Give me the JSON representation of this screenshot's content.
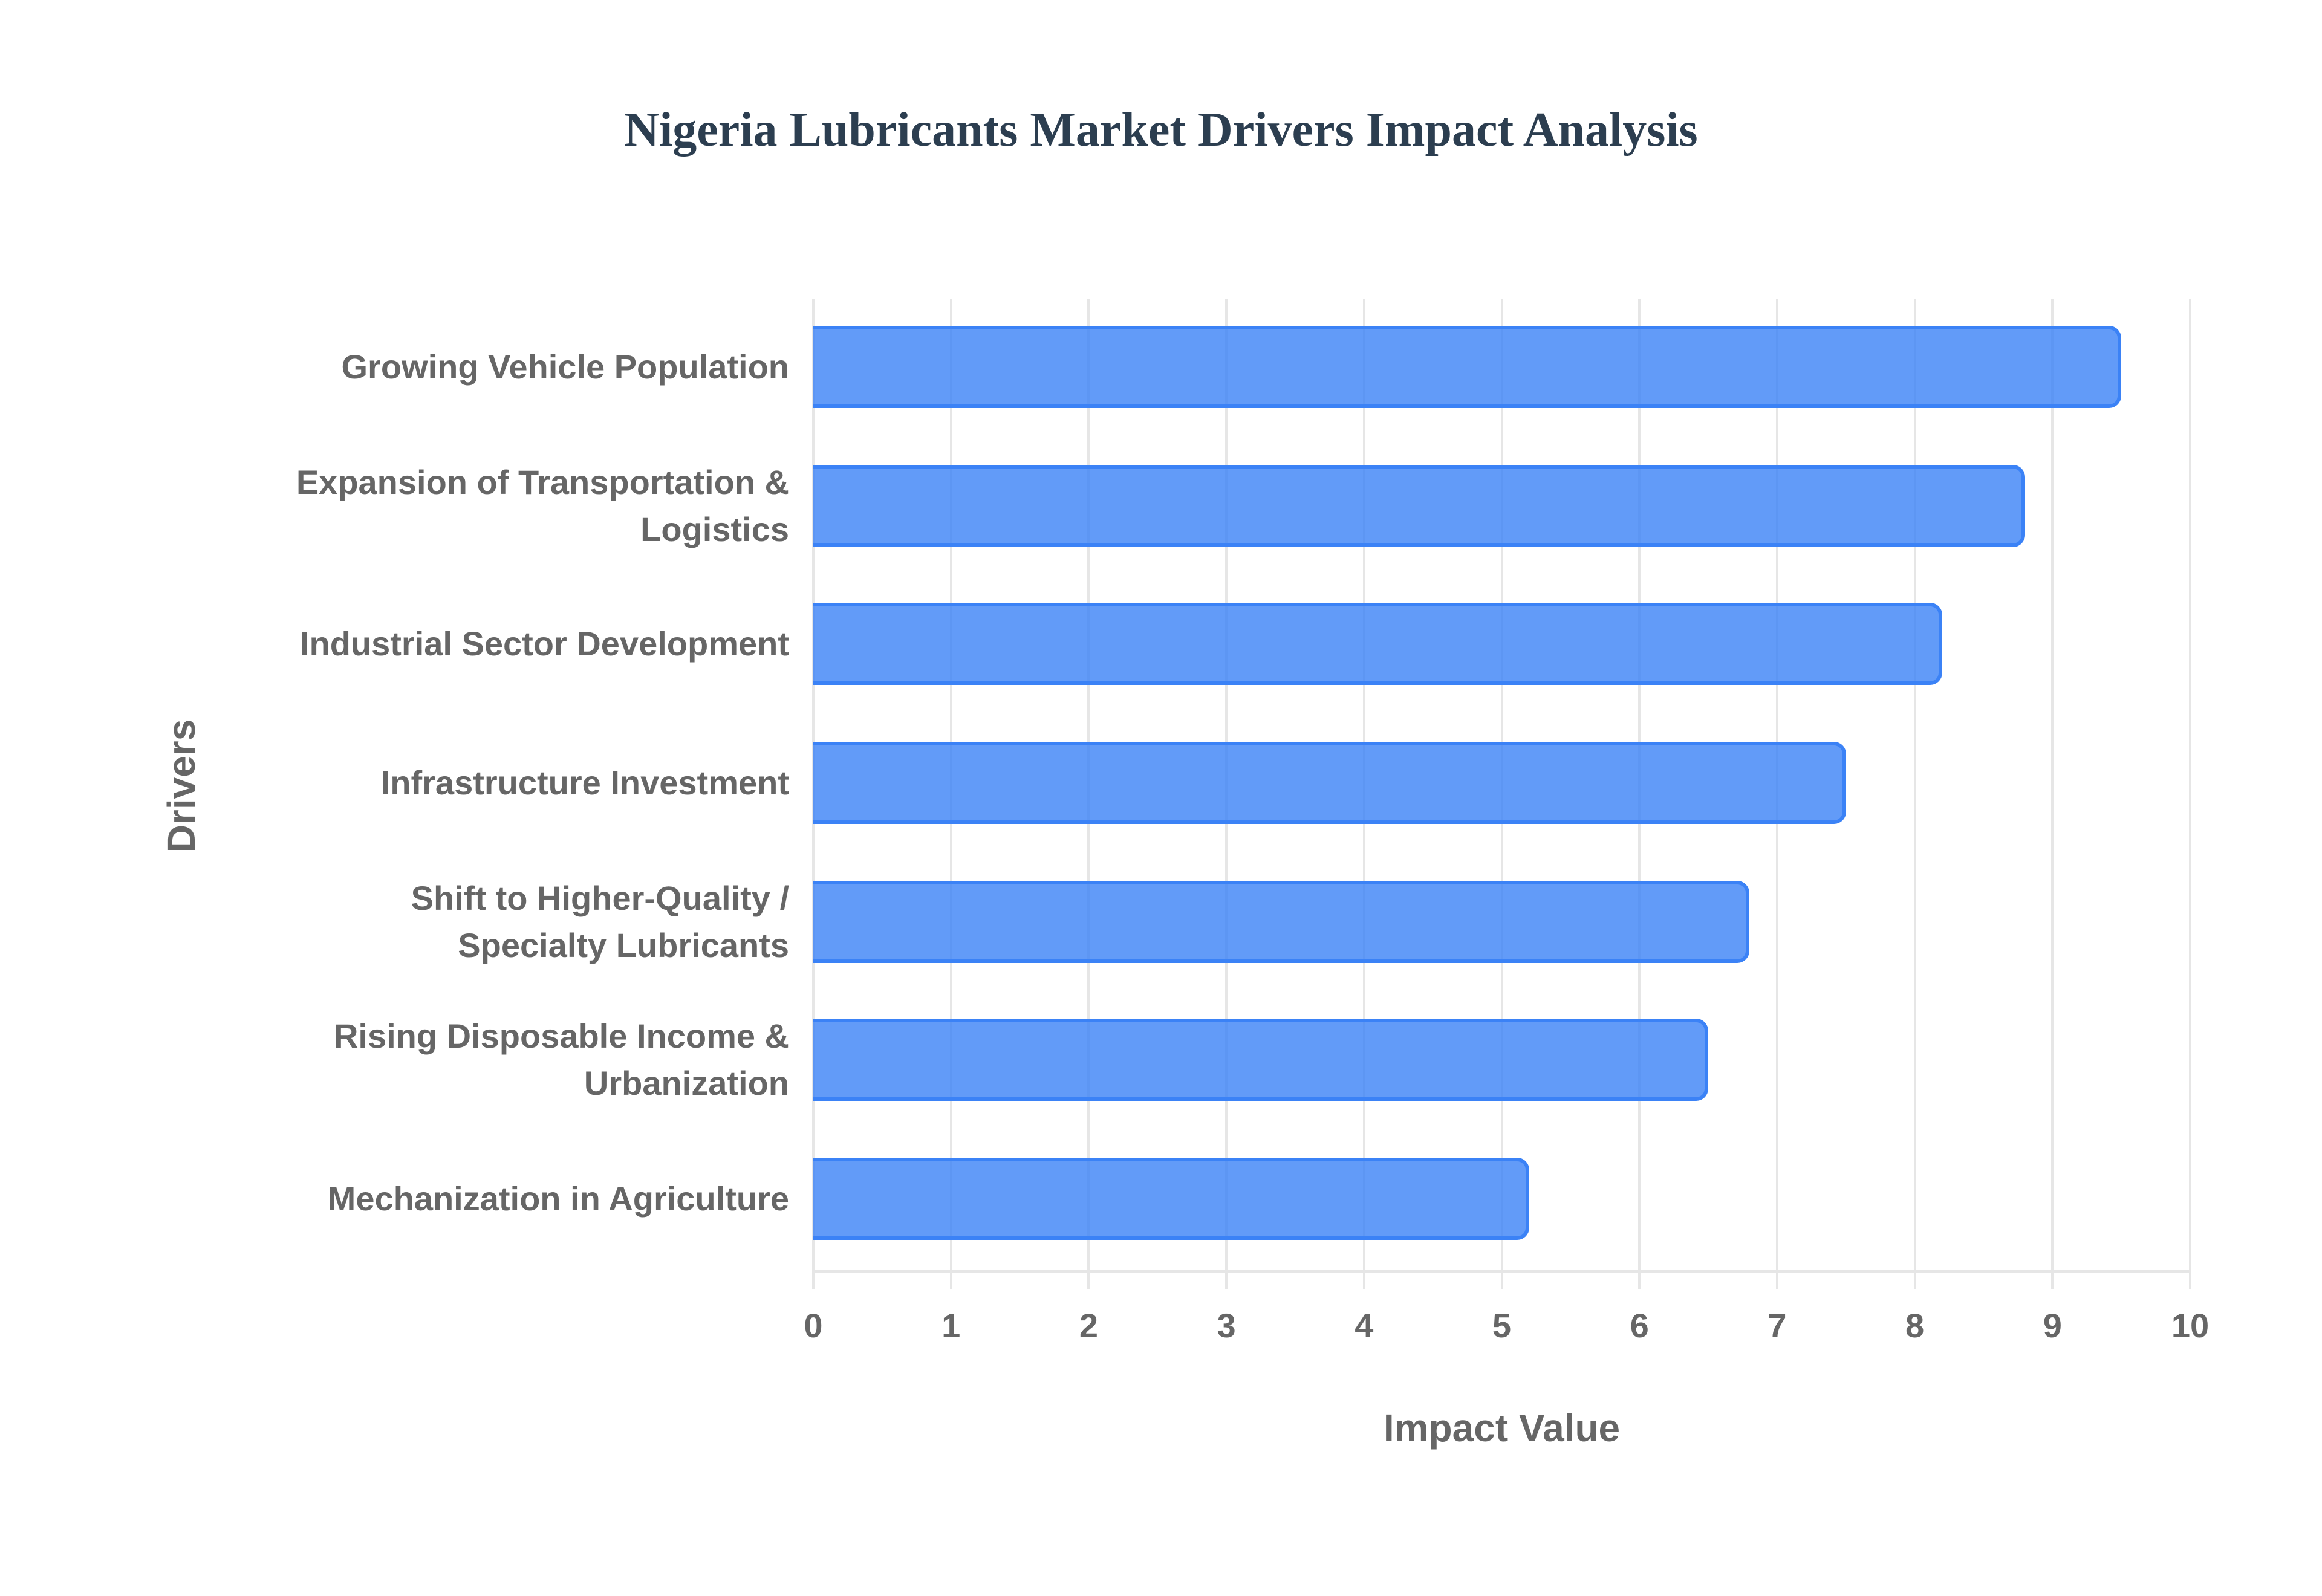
{
  "chart_data": {
    "type": "bar",
    "orientation": "horizontal",
    "title": "Nigeria Lubricants Market Drivers Impact Analysis",
    "xlabel": "Impact Value",
    "ylabel": "Drivers",
    "xlim": [
      0,
      10
    ],
    "xticks": [
      "0",
      "1",
      "2",
      "3",
      "4",
      "5",
      "6",
      "7",
      "8",
      "9",
      "10"
    ],
    "grid": true,
    "legend": null,
    "categories": [
      "Growing Vehicle Population",
      "Expansion of Transportation &\nLogistics",
      "Industrial Sector Development",
      "Infrastructure Investment",
      "Shift to Higher-Quality /\nSpecialty Lubricants",
      "Rising Disposable Income &\nUrbanization",
      "Mechanization in Agriculture"
    ],
    "values": [
      9.5,
      8.8,
      8.2,
      7.5,
      6.8,
      6.5,
      5.2
    ],
    "colors": {
      "bar_fill": "#3b82f6cc",
      "bar_border": "#3b82f6",
      "title": "#2c3e50",
      "axis_text": "#666666",
      "grid": "#e6e6e6"
    }
  }
}
